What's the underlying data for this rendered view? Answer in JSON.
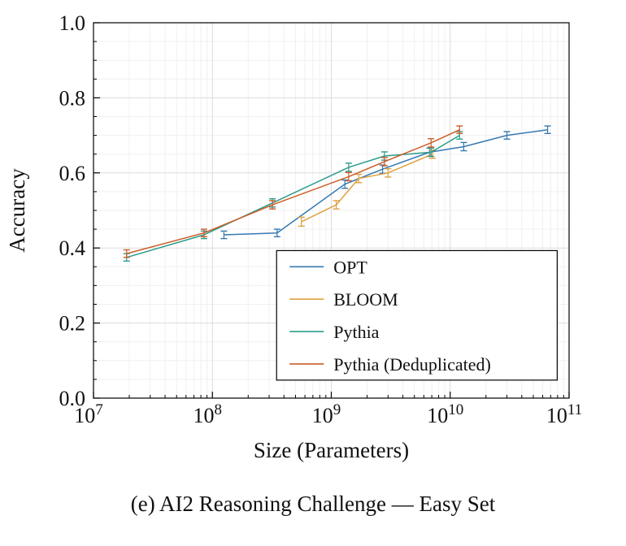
{
  "caption": "(e) AI2 Reasoning Challenge — Easy Set",
  "chart_data": {
    "type": "line",
    "title": "",
    "xlabel": "Size (Parameters)",
    "ylabel": "Accuracy",
    "xscale": "log",
    "xlim": [
      10000000.0,
      100000000000.0
    ],
    "ylim": [
      0.0,
      1.0
    ],
    "yticks": [
      0.0,
      0.2,
      0.4,
      0.6,
      0.8,
      1.0
    ],
    "xtick_exponents": [
      7,
      8,
      9,
      10,
      11
    ],
    "grid": true,
    "legend_position": "inside lower right",
    "frame_color": "#000000",
    "major_grid_color": "#dcdcdc",
    "minor_grid_color": "#f0f0f0",
    "series": [
      {
        "name": "OPT",
        "color": "#3579b1",
        "x": [
          125000000.0,
          350000000.0,
          1300000000.0,
          2700000000.0,
          6700000000.0,
          13000000000.0,
          30000000000.0,
          66000000000.0
        ],
        "y": [
          0.435,
          0.44,
          0.57,
          0.61,
          0.655,
          0.67,
          0.7,
          0.715
        ],
        "yerr": [
          0.01,
          0.01,
          0.011,
          0.011,
          0.011,
          0.011,
          0.01,
          0.01
        ]
      },
      {
        "name": "BLOOM",
        "color": "#dea03e",
        "x": [
          560000000.0,
          1100000000.0,
          1700000000.0,
          3000000000.0,
          7100000000.0
        ],
        "y": [
          0.47,
          0.515,
          0.585,
          0.6,
          0.65
        ],
        "yerr": [
          0.012,
          0.011,
          0.011,
          0.011,
          0.011
        ]
      },
      {
        "name": "Pythia",
        "color": "#2b9c8c",
        "x": [
          19000000.0,
          85000000.0,
          320000000.0,
          1400000000.0,
          2800000000.0,
          6900000000.0,
          12000000000.0
        ],
        "y": [
          0.375,
          0.435,
          0.52,
          0.615,
          0.645,
          0.655,
          0.7
        ],
        "yerr": [
          0.01,
          0.01,
          0.011,
          0.011,
          0.011,
          0.011,
          0.01
        ]
      },
      {
        "name": "Pythia (Deduplicated)",
        "color": "#cc5c27",
        "x": [
          19000000.0,
          85000000.0,
          320000000.0,
          1400000000.0,
          2800000000.0,
          6900000000.0,
          12000000000.0
        ],
        "y": [
          0.385,
          0.44,
          0.515,
          0.59,
          0.63,
          0.68,
          0.715
        ],
        "yerr": [
          0.01,
          0.01,
          0.011,
          0.011,
          0.011,
          0.011,
          0.01
        ]
      }
    ]
  }
}
